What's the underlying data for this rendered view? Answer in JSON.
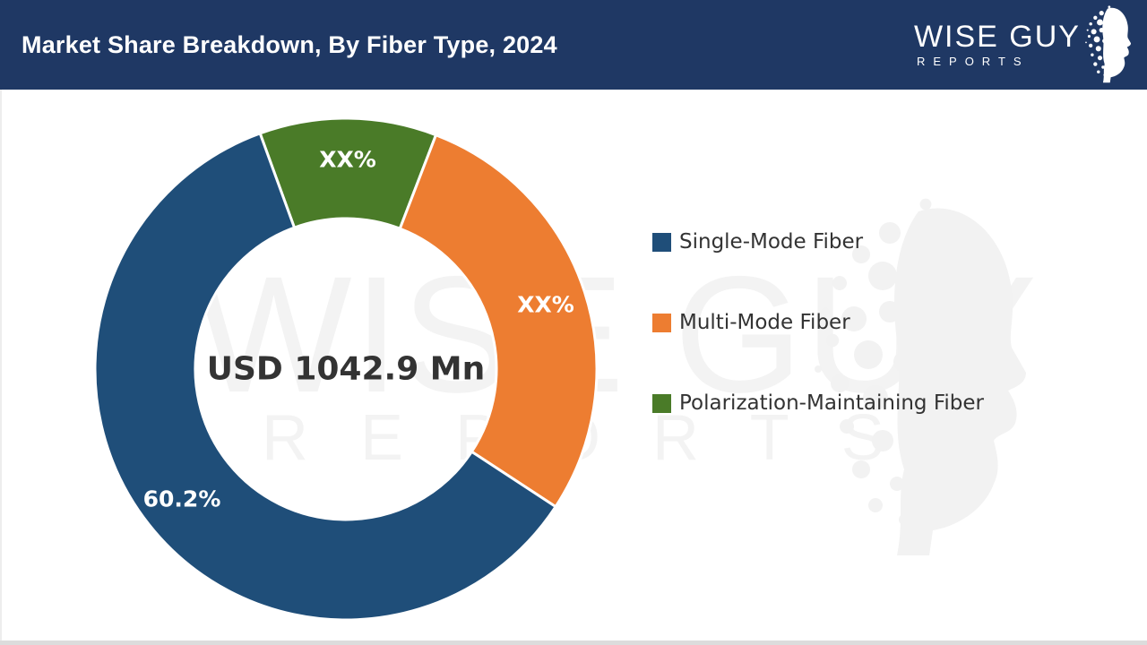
{
  "header": {
    "title": "Market Share Breakdown, By Fiber Type, 2024",
    "bg_color": "#1f3864",
    "logo": {
      "name": "WISE GUY",
      "subname": "REPORTS"
    }
  },
  "watermark": {
    "line1": "WISE GUY",
    "line2": "REPORTS"
  },
  "chart_data": {
    "type": "pie",
    "subtype": "donut",
    "title": "Market Share Breakdown, By Fiber Type, 2024",
    "center_label": "USD 1042.9 Mn",
    "start_angle_deg": -20,
    "legend_position": "right",
    "series": [
      {
        "name": "Single-Mode Fiber",
        "display_label": "60.2%",
        "value_pct": 60.2,
        "color": "#1f4e79"
      },
      {
        "name": "Multi-Mode Fiber",
        "display_label": "XX%",
        "value_pct": 28.4,
        "color": "#ed7d31"
      },
      {
        "name": "Polarization-Maintaining Fiber",
        "display_label": "XX%",
        "value_pct": 11.4,
        "color": "#4a7b28"
      }
    ],
    "plot_order": [
      2,
      1,
      0
    ]
  }
}
